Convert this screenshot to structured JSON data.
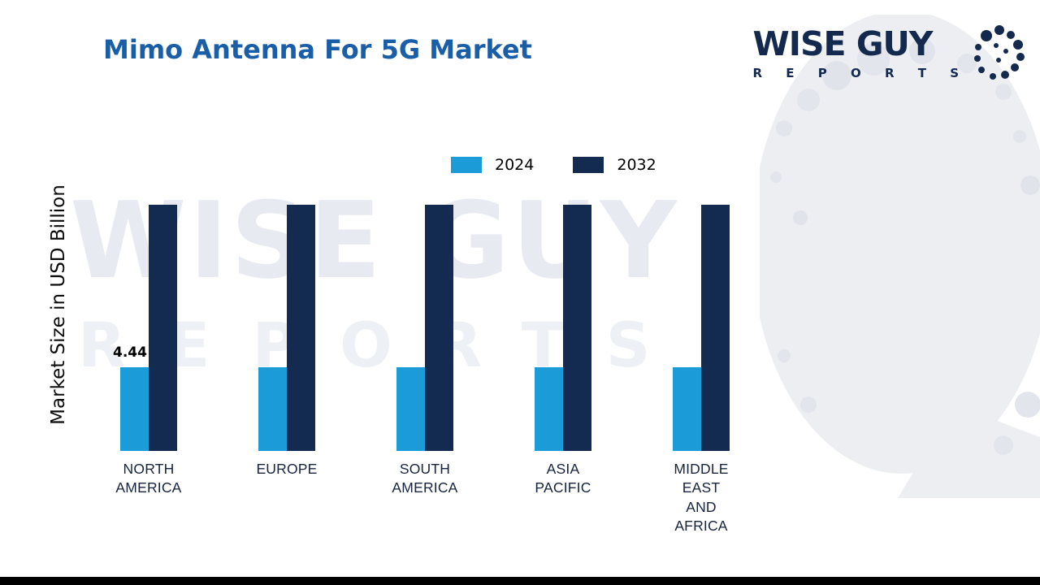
{
  "page": {
    "title": "Mimo Antenna For 5G Market"
  },
  "logo": {
    "line1": "WISE GUY",
    "line2": "R E P O R T S"
  },
  "watermark": {
    "line1": "WISE GUY",
    "line2": "REPORTS"
  },
  "chart_data": {
    "type": "bar",
    "title": "Mimo Antenna For 5G Market",
    "xlabel": "",
    "ylabel": "Market Size in USD Billion",
    "ylim": [
      0,
      13
    ],
    "grid": false,
    "legend_position": "top",
    "categories": [
      "NORTH AMERICA",
      "EUROPE",
      "SOUTH AMERICA",
      "ASIA PACIFIC",
      "MIDDLE EAST AND AFRICA"
    ],
    "category_display": [
      "NORTH\nAMERICA",
      "EUROPE",
      "SOUTH\nAMERICA",
      "ASIA\nPACIFIC",
      "MIDDLE\nEAST\nAND\nAFRICA"
    ],
    "series": [
      {
        "name": "2024",
        "color": "#1b9cd8",
        "values": [
          4.44,
          4.44,
          4.44,
          4.44,
          4.44
        ]
      },
      {
        "name": "2032",
        "color": "#132b50",
        "values": [
          13,
          13,
          13,
          13,
          13
        ]
      }
    ],
    "data_labels": [
      {
        "series": "2024",
        "category": "NORTH AMERICA",
        "text": "4.44"
      }
    ]
  },
  "colors": {
    "title_blue": "#1b5ea8",
    "bar_2024": "#1b9cd8",
    "bar_2032": "#132b50",
    "logo_navy": "#14294e"
  }
}
